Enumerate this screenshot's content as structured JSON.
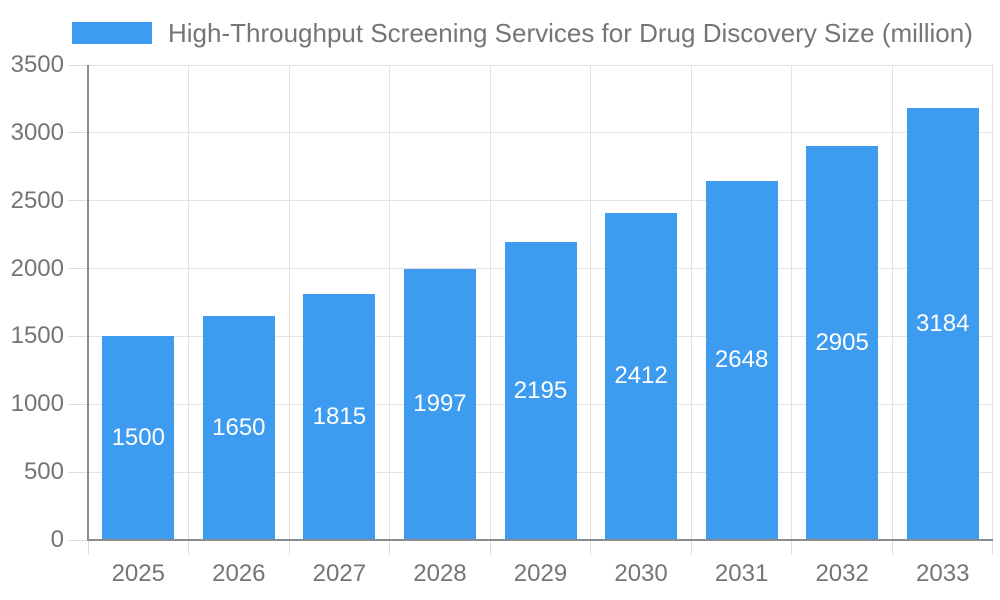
{
  "chart_data": {
    "type": "bar",
    "title": "High-Throughput Screening Services for Drug Discovery Size (million)",
    "categories": [
      "2025",
      "2026",
      "2027",
      "2028",
      "2029",
      "2030",
      "2031",
      "2032",
      "2033"
    ],
    "values": [
      1500,
      1650,
      1815,
      1997,
      2195,
      2412,
      2648,
      2905,
      3184
    ],
    "xlabel": "",
    "ylabel": "",
    "ylim": [
      0,
      3500
    ],
    "yticks": [
      0,
      500,
      1000,
      1500,
      2000,
      2500,
      3000,
      3500
    ],
    "grid": true,
    "legend_position": "top",
    "value_labels": "inside-middle",
    "colors": {
      "bar": "#3d9bf0",
      "value_label": "#ffffff",
      "axis_label": "#757575",
      "title": "#757575",
      "grid_line": "#e3e3e3",
      "tick_line": "#dcdcdc",
      "axis_line": "#8c8c8c",
      "background": "#ffffff"
    }
  }
}
